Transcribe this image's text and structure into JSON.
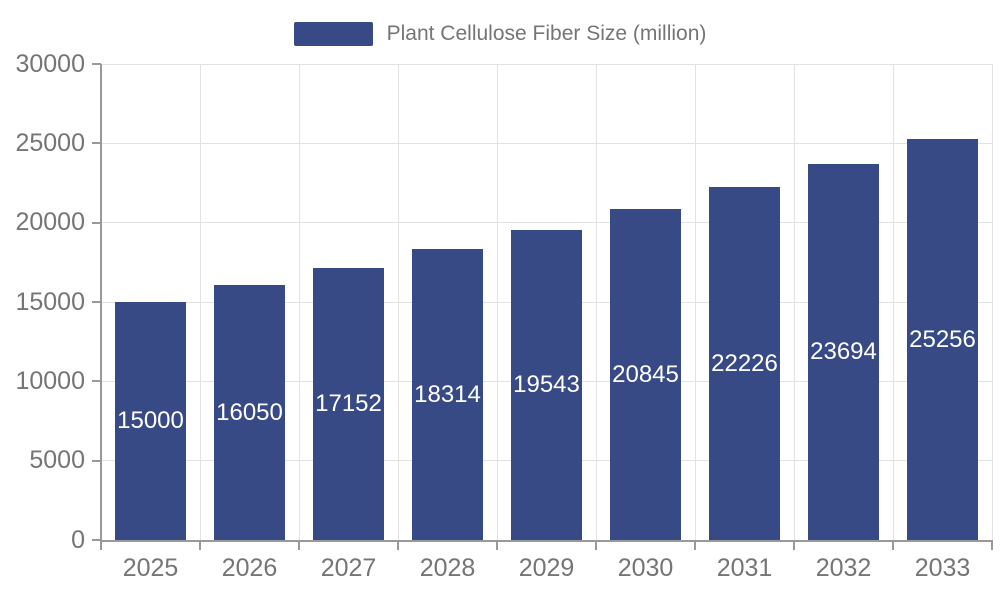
{
  "chart_data": {
    "type": "bar",
    "title": "Plant Cellulose Fiber Size (million)",
    "legend": {
      "label": "Plant Cellulose Fiber Size (million)",
      "position": "top-center"
    },
    "categories": [
      "2025",
      "2026",
      "2027",
      "2028",
      "2029",
      "2030",
      "2031",
      "2032",
      "2033"
    ],
    "values": [
      15000,
      16050,
      17152,
      18314,
      19543,
      20845,
      22226,
      23694,
      25256
    ],
    "value_labels": [
      "15000",
      "16050",
      "17152",
      "18314",
      "19543",
      "20845",
      "22226",
      "23694",
      "25256"
    ],
    "xlabel": "",
    "ylabel": "",
    "ylim": [
      0,
      30000
    ],
    "y_ticks": [
      0,
      5000,
      10000,
      15000,
      20000,
      25000,
      30000
    ],
    "y_tick_labels": [
      "0",
      "5000",
      "10000",
      "15000",
      "20000",
      "25000",
      "30000"
    ],
    "grid": true,
    "colors": {
      "bar": "#384a85",
      "axis": "#999999",
      "gridline": "#e2e2e2",
      "tick_label": "#757575",
      "legend_text": "#757575",
      "value_label": "#ffffff",
      "background": "#ffffff"
    }
  }
}
